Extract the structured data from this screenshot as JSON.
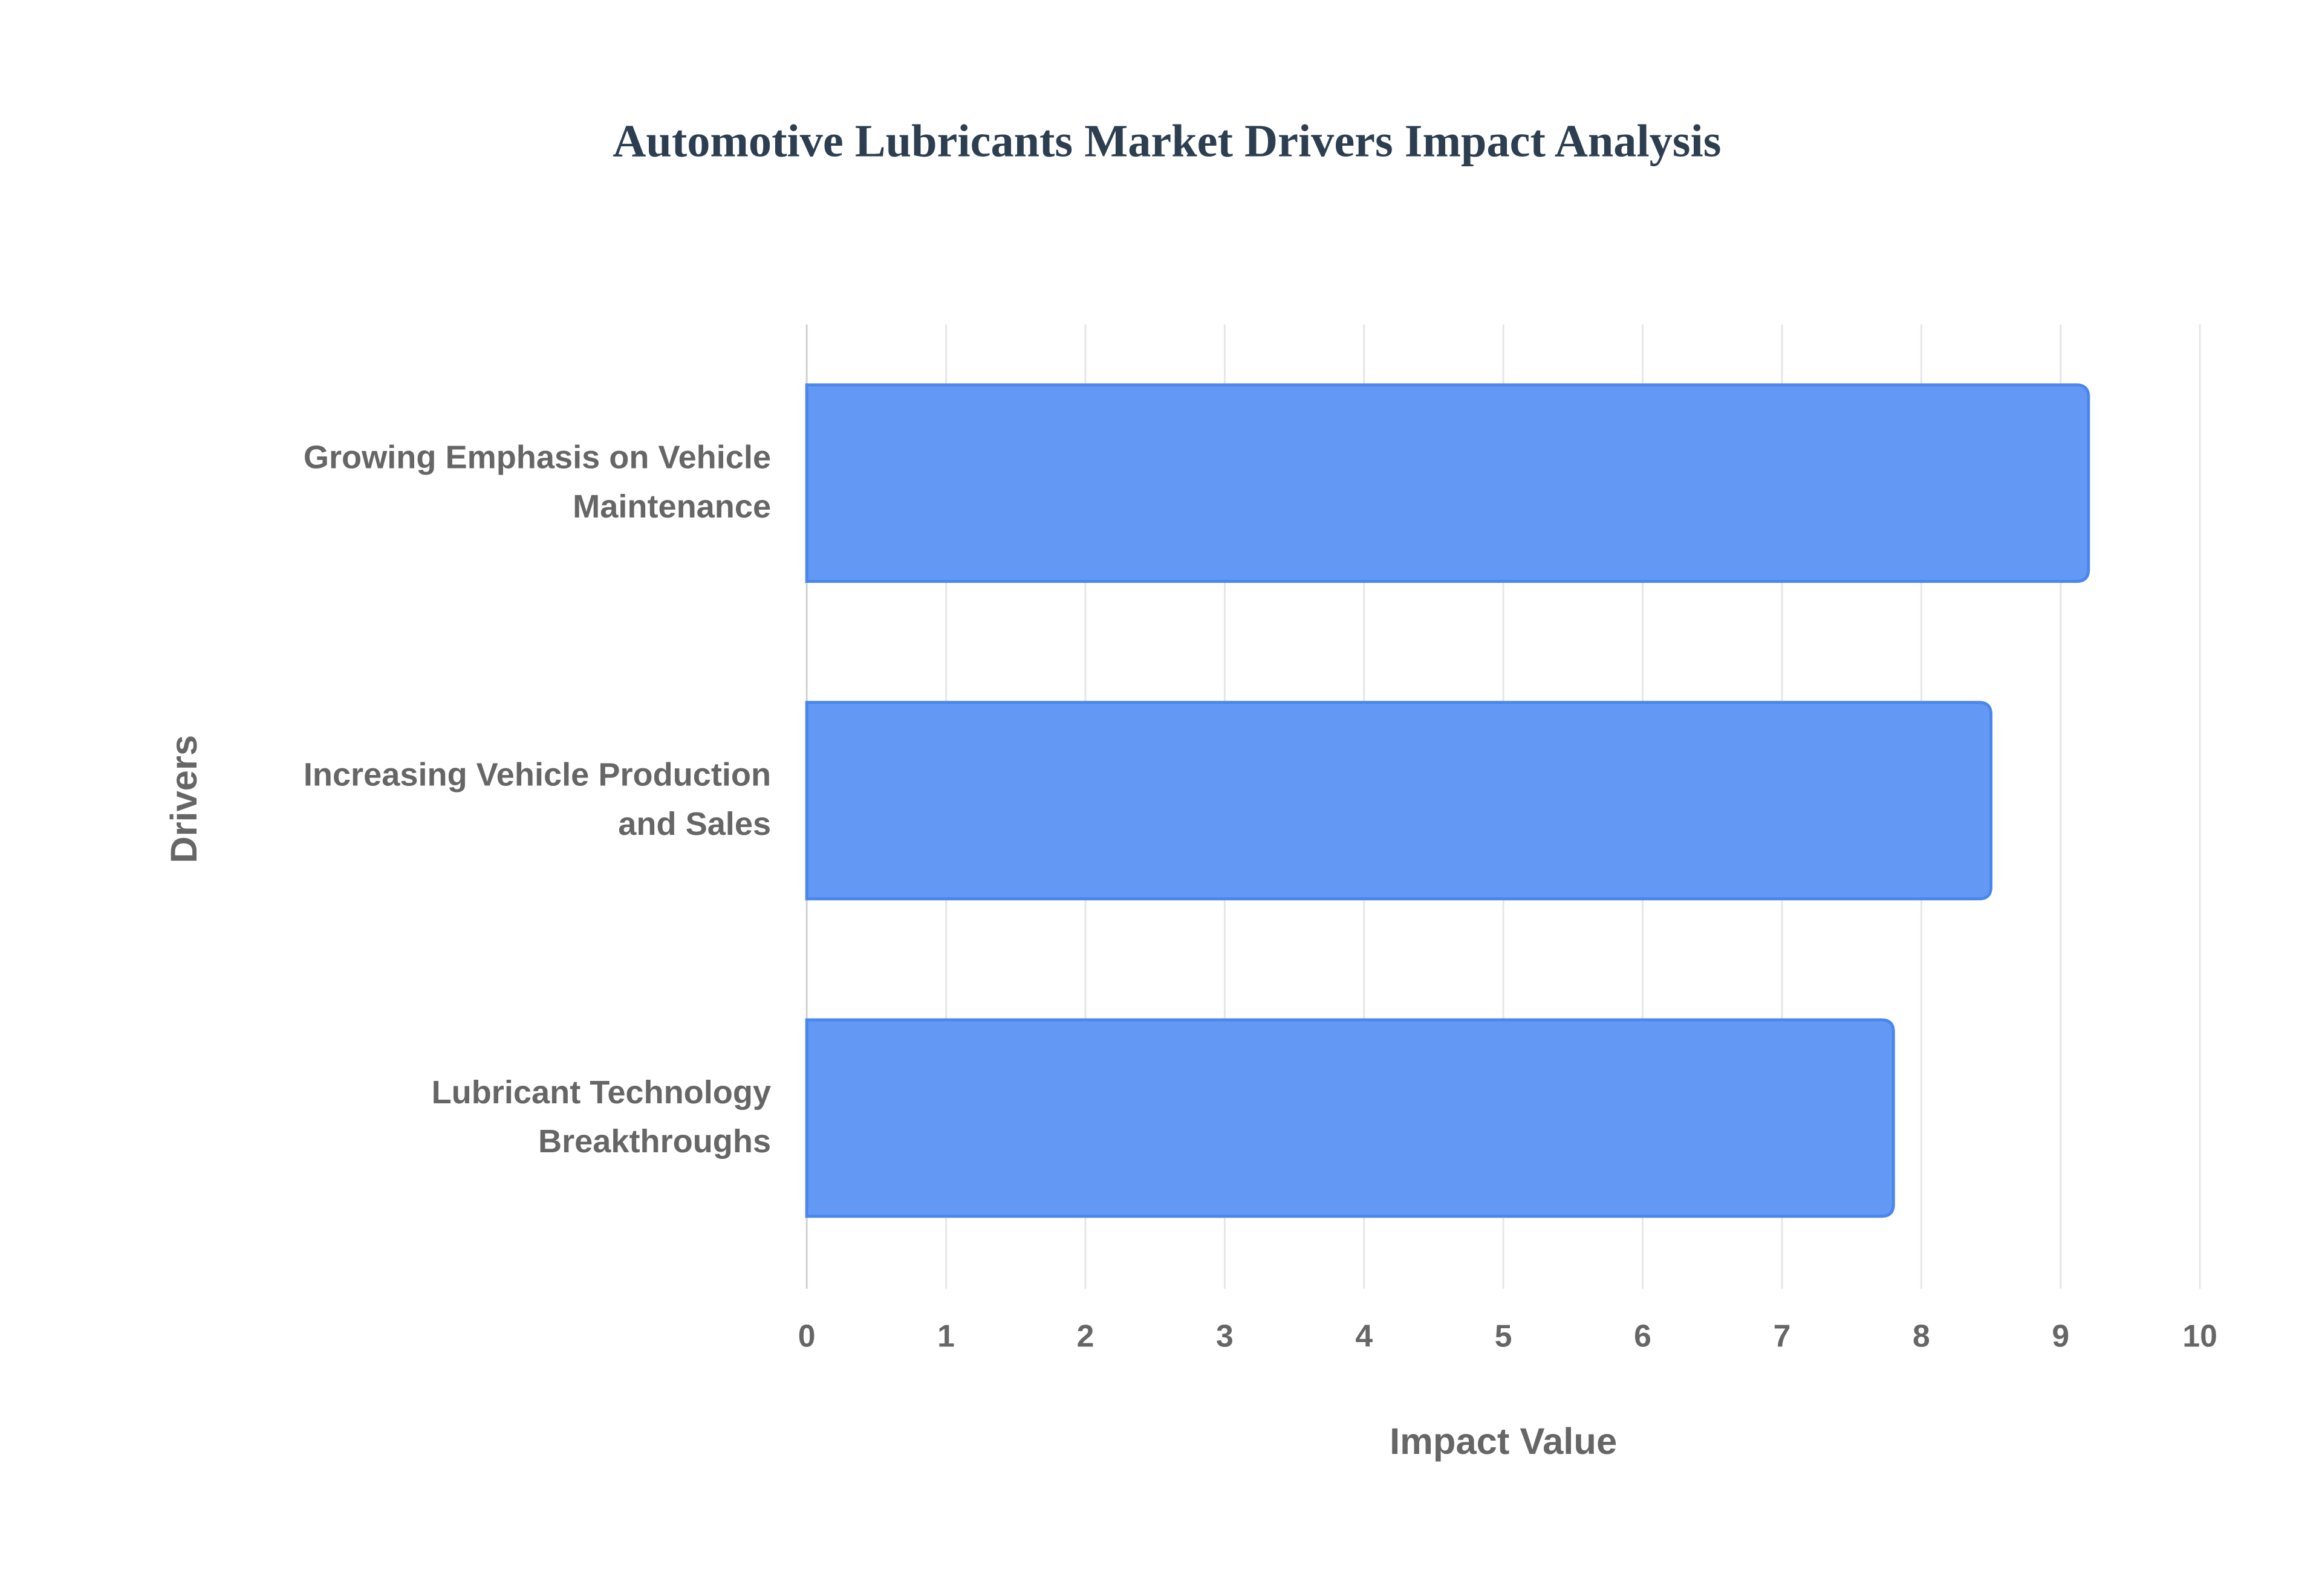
{
  "chart_data": {
    "type": "bar",
    "orientation": "horizontal",
    "title": "Automotive Lubricants Market Drivers Impact Analysis",
    "xlabel": "Impact Value",
    "ylabel": "Drivers",
    "categories": [
      [
        "Growing Emphasis on Vehicle",
        "Maintenance"
      ],
      [
        "Increasing Vehicle Production",
        "and Sales"
      ],
      [
        "Lubricant Technology",
        "Breakthroughs"
      ]
    ],
    "values": [
      9.2,
      8.5,
      7.8
    ],
    "xlim": [
      0,
      10
    ],
    "xticks": [
      "0",
      "1",
      "2",
      "3",
      "4",
      "5",
      "6",
      "7",
      "8",
      "9",
      "10"
    ],
    "grid": true,
    "legend": "none",
    "colors": {
      "bar_fill": "#6399f5",
      "bar_border": "#4a86ee",
      "title": "#2c3e50",
      "text": "#666666",
      "grid": "#e6e6e6"
    }
  }
}
